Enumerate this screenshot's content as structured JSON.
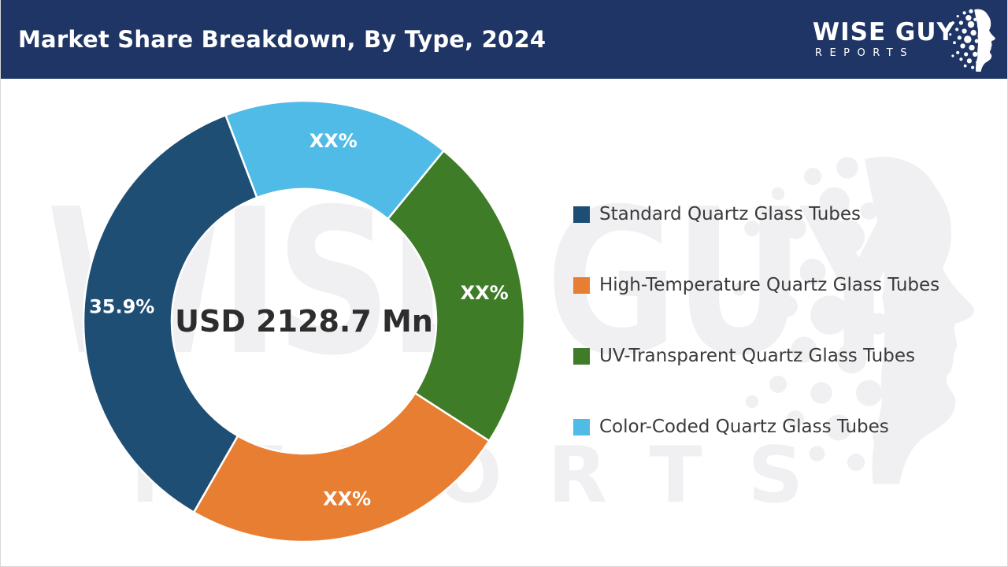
{
  "header": {
    "title": "Market Share Breakdown, By Type, 2024"
  },
  "logo": {
    "line1": "WISE GUY",
    "line2": "REPORTS"
  },
  "chart_data": {
    "type": "pie",
    "subtype": "donut",
    "title": "Market Share Breakdown, By Type, 2024",
    "center_label": "USD 2128.7 Mn",
    "legend_position": "right",
    "direction": "counterclockwise",
    "start_angle_deg": 110.8,
    "inner_radius_ratio": 0.6,
    "categories": [
      "Standard Quartz Glass Tubes",
      "High-Temperature Quartz Glass Tubes",
      "UV-Transparent Quartz Glass Tubes",
      "Color-Coded Quartz Glass Tubes"
    ],
    "segments": [
      {
        "label": "Standard Quartz Glass Tubes",
        "value": 35.9,
        "display": "35.9%",
        "masked": false,
        "color": "#1f4e74"
      },
      {
        "label": "High-Temperature Quartz Glass Tubes",
        "value": 24.2,
        "display": "XX%",
        "masked": true,
        "color": "#e87e31"
      },
      {
        "label": "UV-Transparent Quartz Glass Tubes",
        "value": 23.2,
        "display": "XX%",
        "masked": true,
        "color": "#3f7c28"
      },
      {
        "label": "Color-Coded Quartz Glass Tubes",
        "value": 16.7,
        "display": "XX%",
        "masked": true,
        "color": "#4fbbe6"
      }
    ]
  },
  "colors": {
    "header_background": "#1f3565",
    "watermark": "#f0f0f3",
    "center_text": "#2d2d2d",
    "legend_text": "#3a3a3a",
    "frame_border": "#d8d8d8"
  }
}
